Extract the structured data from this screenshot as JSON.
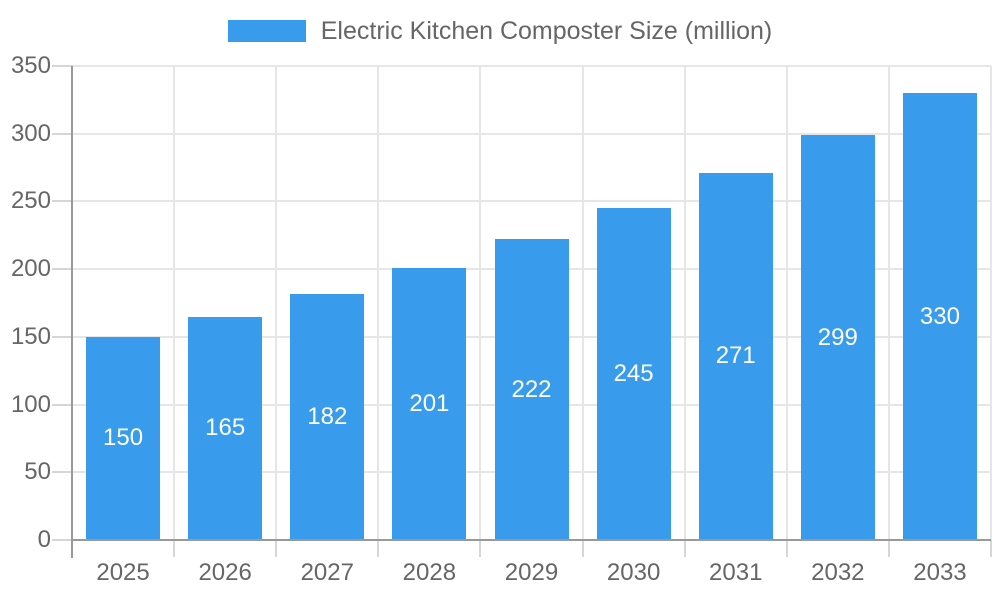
{
  "legend": {
    "label": "Electric Kitchen Composter Size (million)"
  },
  "chart_data": {
    "type": "bar",
    "title": "Electric Kitchen Composter Size (million)",
    "categories": [
      "2025",
      "2026",
      "2027",
      "2028",
      "2029",
      "2030",
      "2031",
      "2032",
      "2033"
    ],
    "series": [
      {
        "name": "Electric Kitchen Composter Size (million)",
        "color": "#389bec",
        "values": [
          150,
          165,
          182,
          201,
          222,
          245,
          271,
          299,
          330
        ]
      }
    ],
    "ylim": [
      0,
      350
    ],
    "ytick_step": 50,
    "grid": true,
    "legend_position": "top",
    "value_labels": {
      "position": "inside-middle",
      "color": "#ffffff"
    },
    "axis_style": {
      "tick_label_color": "#666666",
      "axis_line_color": "#999999",
      "grid_line_color": "#e6e6e6",
      "tick_mark_color": "#d6d6d6"
    }
  }
}
